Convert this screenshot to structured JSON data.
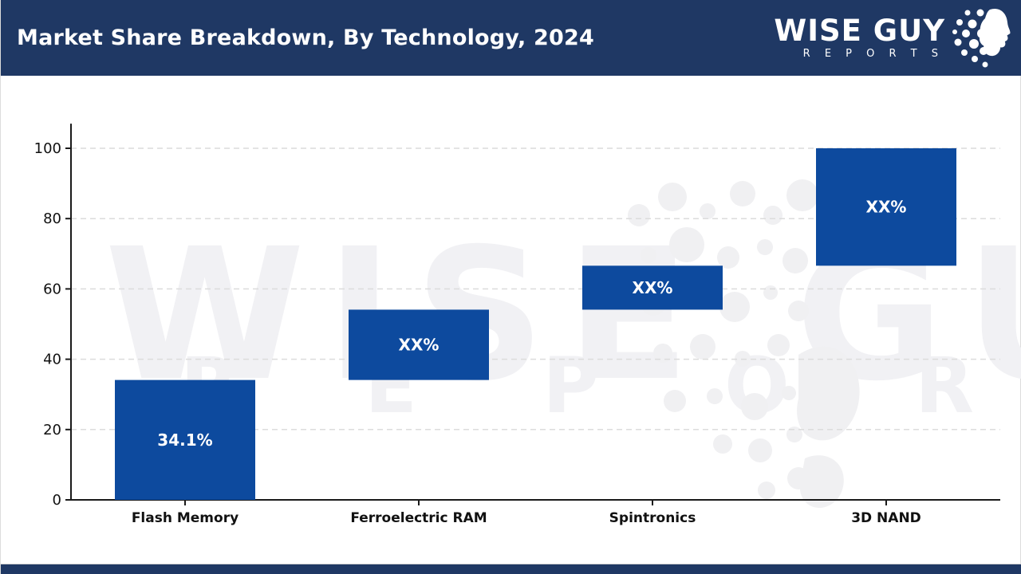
{
  "header": {
    "title": "Market Share Breakdown, By Technology, 2024",
    "logo": {
      "line1": "WISE GUY",
      "line2": "R E P O R T S"
    }
  },
  "watermark": {
    "line1": "WISE GUY",
    "line2": "R E P O R T S"
  },
  "chart_data": {
    "type": "bar",
    "subtype": "waterfall",
    "title": "Market Share Breakdown, By Technology, 2024",
    "categories": [
      "Flash Memory",
      "Ferroelectric RAM",
      "Spintronics",
      "3D NAND"
    ],
    "segments": [
      {
        "category": "Flash Memory",
        "start": 0,
        "end": 34.1,
        "label": "34.1%"
      },
      {
        "category": "Ferroelectric RAM",
        "start": 34.1,
        "end": 54.1,
        "label": "XX%"
      },
      {
        "category": "Spintronics",
        "start": 54.1,
        "end": 66.6,
        "label": "XX%"
      },
      {
        "category": "3D NAND",
        "start": 66.6,
        "end": 100,
        "label": "XX%"
      }
    ],
    "yticks": [
      0,
      20,
      40,
      60,
      80,
      100
    ],
    "ylim": [
      0,
      107
    ],
    "xlabel": "",
    "ylabel": "",
    "grid": "dashed-horizontal",
    "legend": "none",
    "bar_color": "#0d4a9e",
    "bar_label_color": "#ffffff"
  },
  "colors": {
    "header_bg": "#1f3864",
    "footer_bg": "#1f3864",
    "bar": "#0d4a9e",
    "grid": "#dcdcdc",
    "axis": "#1a1a1a",
    "tick_text": "#111111",
    "watermark": "#f1f1f4"
  }
}
